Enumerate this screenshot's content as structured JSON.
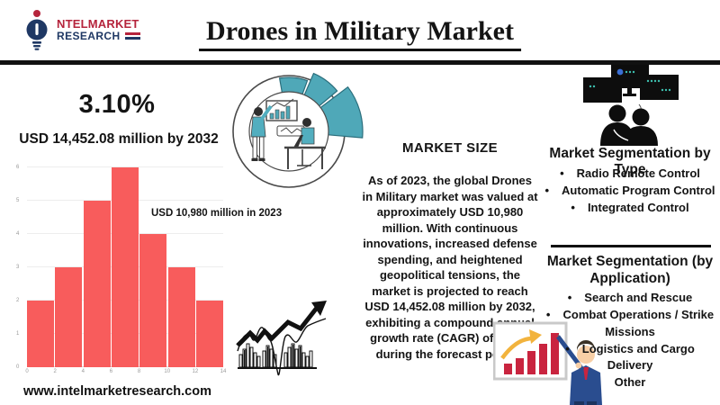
{
  "header": {
    "logo_line1": "NTELMARKET",
    "logo_line2": "RESEARCH",
    "title": "Drones in Military Market"
  },
  "stats": {
    "cagr": "3.10%",
    "projection": "USD 14,452.08 million by 2032"
  },
  "chart_data": {
    "type": "bar",
    "categories": [
      "0-2",
      "2-4",
      "4-6",
      "6-8",
      "8-10",
      "10-12",
      "12-14"
    ],
    "values": [
      2,
      3,
      5,
      6,
      4,
      3,
      2
    ],
    "x_ticks": [
      0,
      2,
      4,
      6,
      8,
      10,
      12,
      14
    ],
    "y_ticks": [
      0,
      1,
      2,
      3,
      4,
      5,
      6
    ],
    "ylim": [
      0,
      6
    ],
    "grid": true,
    "legend": "none",
    "bar_color": "#f85c5c",
    "title": "",
    "xlabel": "",
    "ylabel": "",
    "annotation": "USD 10,980 million in 2023"
  },
  "market_size": {
    "heading": "MARKET SIZE",
    "body": "As of 2023, the global Drones in Military market was valued at approximately USD 10,980 million. With continuous innovations, increased defense spending, and heightened geopolitical tensions, the market is projected to reach USD 14,452.08 million by 2032, exhibiting a compound annual growth rate (CAGR) of 3.10% during the forecast period."
  },
  "segmentation_type": {
    "heading": "Market Segmentation by Type",
    "items": [
      {
        "label": "Radio Remote Control",
        "bullet": true
      },
      {
        "label": "Automatic Program Control",
        "bullet": true
      },
      {
        "label": "Integrated Control",
        "bullet": true
      }
    ]
  },
  "segmentation_application": {
    "heading": "Market Segmentation (by Application)",
    "items": [
      {
        "label": "Search and Rescue",
        "bullet": true
      },
      {
        "label": "Combat Operations / Strike Missions",
        "bullet": true
      },
      {
        "label": "Logistics and Cargo Delivery",
        "bullet": true
      },
      {
        "label": "Other",
        "bullet": false
      }
    ]
  },
  "footer": {
    "website": "www.intelmarketresearch.com"
  },
  "colors": {
    "bar_red": "#f85c5c",
    "teal": "#4fa8b8",
    "navy": "#1f3864",
    "logo_red": "#b5243c",
    "board_bar_red": "#c9243f",
    "arrow_yellow": "#f2b33d",
    "black": "#111111"
  },
  "icons": {
    "logo": "lightbulb-icon",
    "center": "analysts-pie-chart-illustration",
    "stock": "stock-trend-illustration",
    "monitors": "surveillance-team-icon",
    "board": "growth-presentation-illustration"
  }
}
